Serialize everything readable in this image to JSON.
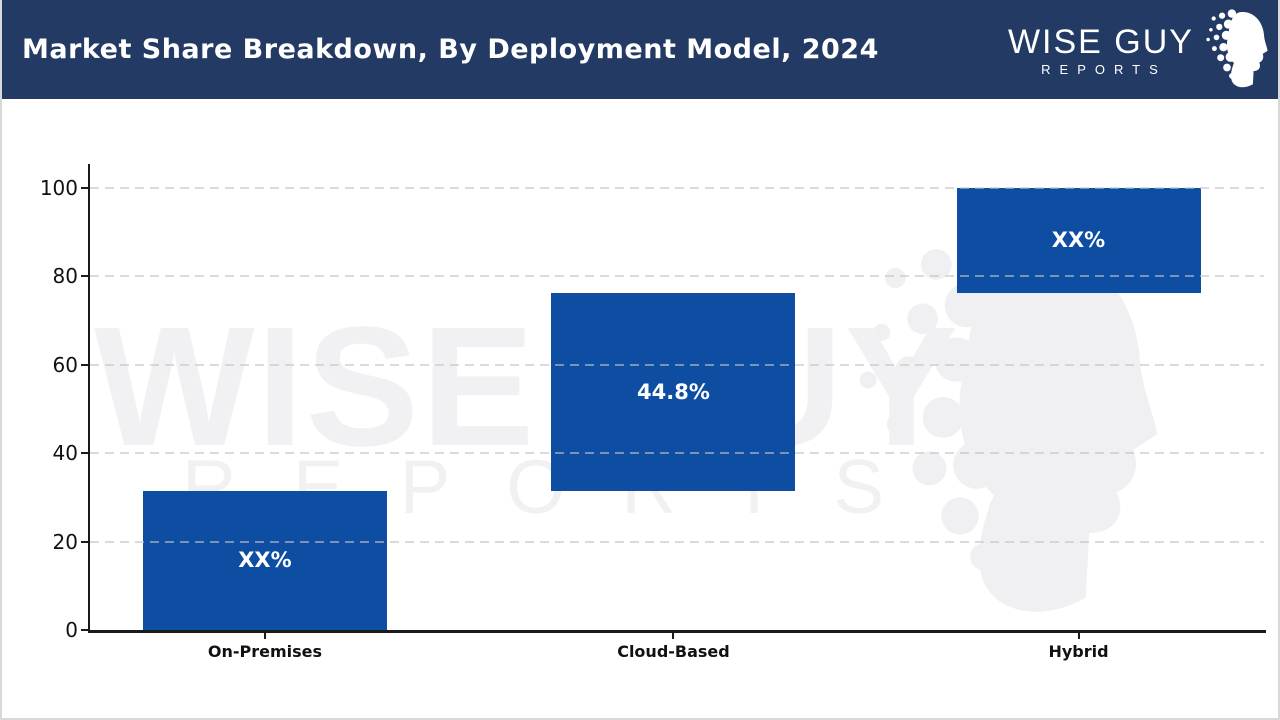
{
  "header": {
    "title": "Market Share Breakdown, By Deployment Model, 2024",
    "logo": {
      "wordmark": "WISE GUY",
      "subtitle": "REPORTS"
    }
  },
  "watermark": {
    "wordmark": "WISE GUY",
    "subtitle": "REPORTS"
  },
  "colors": {
    "header_bg": "#223a64",
    "bar": "#0d4da2",
    "grid": "#d9d9d9",
    "axis": "#1a1a1a",
    "bar_label_text": "#ffffff",
    "watermark": "#f1f1f4"
  },
  "chart_data": {
    "type": "bar",
    "subtype": "waterfall-floating-bars",
    "title": "Market Share Breakdown, By Deployment Model, 2024",
    "categories": [
      "On-Premises",
      "Cloud-Based",
      "Hybrid"
    ],
    "series": [
      {
        "name": "Market Share (%)",
        "segments": [
          {
            "category": "On-Premises",
            "start": 0,
            "end": 31.5,
            "label": "XX%"
          },
          {
            "category": "Cloud-Based",
            "start": 31.5,
            "end": 76.3,
            "label": "44.8%"
          },
          {
            "category": "Hybrid",
            "start": 76.3,
            "end": 100,
            "label": "XX%"
          }
        ]
      }
    ],
    "bar_labels": [
      "XX%",
      "44.8%",
      "XX%"
    ],
    "xlabel": "",
    "ylabel": "",
    "ylim": [
      0,
      100
    ],
    "yticks": [
      0,
      20,
      40,
      60,
      80,
      100
    ],
    "grid": "horizontal-dashed",
    "legend": "none"
  }
}
